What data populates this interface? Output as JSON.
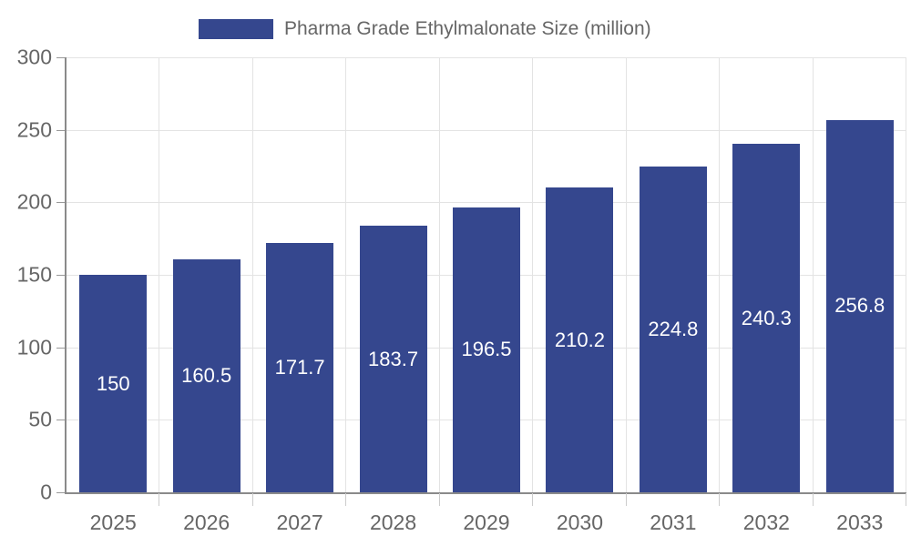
{
  "chart_data": {
    "type": "bar",
    "title": "",
    "legend": [
      {
        "label": "Pharma Grade Ethylmalonate Size (million)",
        "color": "#35478e"
      }
    ],
    "legend_position": "top-center",
    "categories": [
      "2025",
      "2026",
      "2027",
      "2028",
      "2029",
      "2030",
      "2031",
      "2032",
      "2033"
    ],
    "series": [
      {
        "name": "Pharma Grade Ethylmalonate Size (million)",
        "values": [
          150,
          160.5,
          171.7,
          183.7,
          196.5,
          210.2,
          224.8,
          240.3,
          256.8
        ]
      }
    ],
    "value_labels": [
      "150",
      "160.5",
      "171.7",
      "183.7",
      "196.5",
      "210.2",
      "224.8",
      "240.3",
      "256.8"
    ],
    "xlabel": "",
    "ylabel": "",
    "ylim": [
      0,
      300
    ],
    "ytick_step": 50,
    "ytick_labels": [
      "0",
      "50",
      "100",
      "150",
      "200",
      "250",
      "300"
    ],
    "grid": true
  },
  "colors": {
    "bar": "#35478e",
    "bar_label": "#ffffff",
    "axis_line": "#8a8a8a",
    "grid_line": "#e3e3e3",
    "x_tick": "#cccccc",
    "y_tick": "#999999",
    "text": "#666666",
    "background": "#ffffff"
  }
}
